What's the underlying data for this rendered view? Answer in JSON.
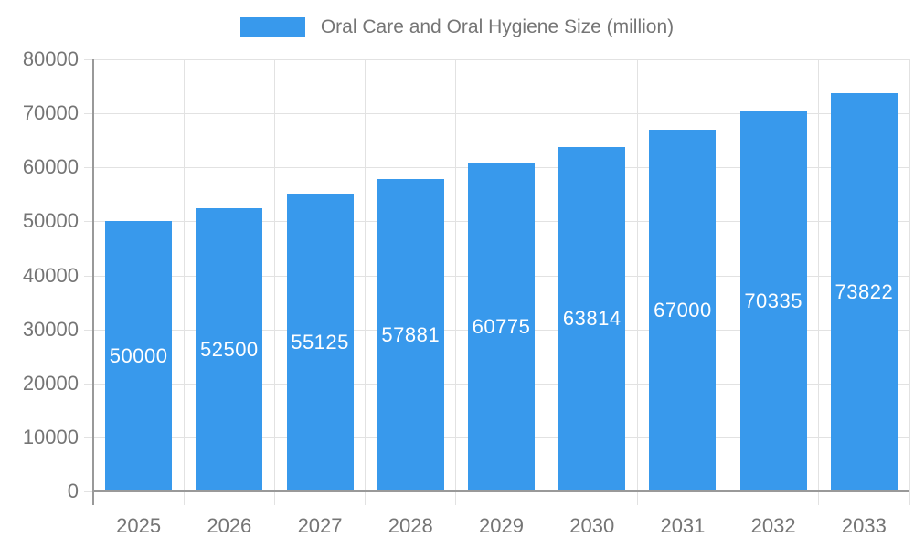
{
  "chart_data": {
    "type": "bar",
    "title": "Oral Care and Oral Hygiene Size (million)",
    "legend_position": "top",
    "grid": true,
    "categories": [
      "2025",
      "2026",
      "2027",
      "2028",
      "2029",
      "2030",
      "2031",
      "2032",
      "2033"
    ],
    "series": [
      {
        "name": "Oral Care and Oral Hygiene Size (million)",
        "values": [
          50000,
          52500,
          55125,
          57881,
          60775,
          63814,
          67000,
          70335,
          73822
        ]
      }
    ],
    "value_labels": [
      "50000",
      "52500",
      "55125",
      "57881",
      "60775",
      "63814",
      "67000",
      "70335",
      "73822"
    ],
    "xlabel": "",
    "ylabel": "",
    "ylim": [
      0,
      80000
    ],
    "yticks": [
      0,
      10000,
      20000,
      30000,
      40000,
      50000,
      60000,
      70000,
      80000
    ],
    "colors": {
      "bar": "#3899EC",
      "value_label": "#ffffff",
      "grid": "#e2e2e2",
      "axis": "#999999",
      "text": "#757575"
    }
  }
}
